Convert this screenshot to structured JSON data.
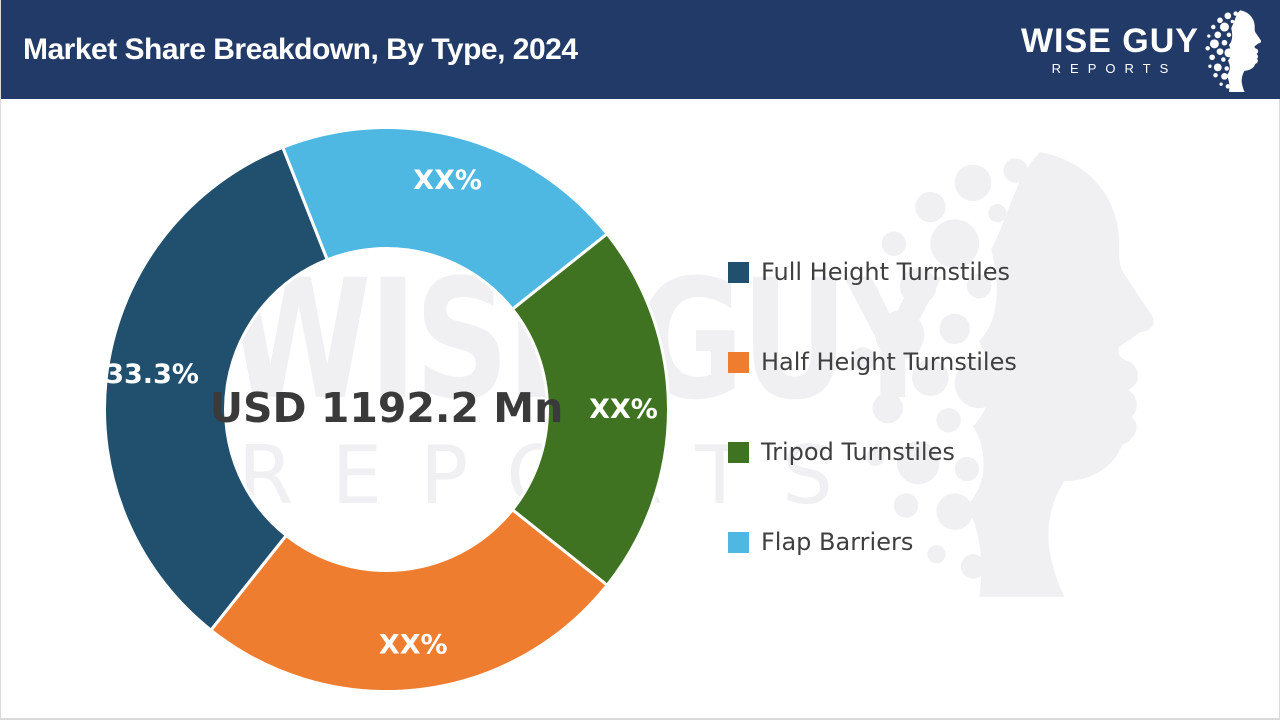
{
  "header": {
    "title": "Market Share Breakdown, By Type, 2024",
    "bg_color": "#223A68",
    "logo": {
      "line1": "WISE GUY",
      "line2": "REPORTS"
    }
  },
  "watermark": {
    "line1": "WISE GUY",
    "line2": "REPORTS",
    "color": "#F0F0F2"
  },
  "chart_data": {
    "type": "pie",
    "donut": true,
    "title": "Market Share Breakdown, By Type, 2024",
    "center_label": "USD 1192.2 Mn",
    "center_label_color": "#3A3A3A",
    "slice_label_color": "#FFFFFF",
    "legend_text_color": "#3F3F3F",
    "legend_position": "right",
    "start_angle_deg_from_top_cw": 338.4,
    "slices": [
      {
        "name": "Flap Barriers",
        "value_pct": 20.3,
        "label": "XX%",
        "color": "#4EB8E2"
      },
      {
        "name": "Tripod Turnstiles",
        "value_pct": 21.4,
        "label": "XX%",
        "color": "#3F7322"
      },
      {
        "name": "Half Height Turnstiles",
        "value_pct": 25.0,
        "label": "XX%",
        "color": "#EE7D30"
      },
      {
        "name": "Full Height Turnstiles",
        "value_pct": 33.3,
        "label": "33.3%",
        "color": "#21506E"
      }
    ],
    "legend": [
      {
        "name": "Full Height Turnstiles",
        "color": "#21506E"
      },
      {
        "name": "Half Height Turnstiles",
        "color": "#EE7D30"
      },
      {
        "name": "Tripod Turnstiles",
        "color": "#3F7322"
      },
      {
        "name": "Flap Barriers",
        "color": "#4EB8E2"
      }
    ]
  }
}
